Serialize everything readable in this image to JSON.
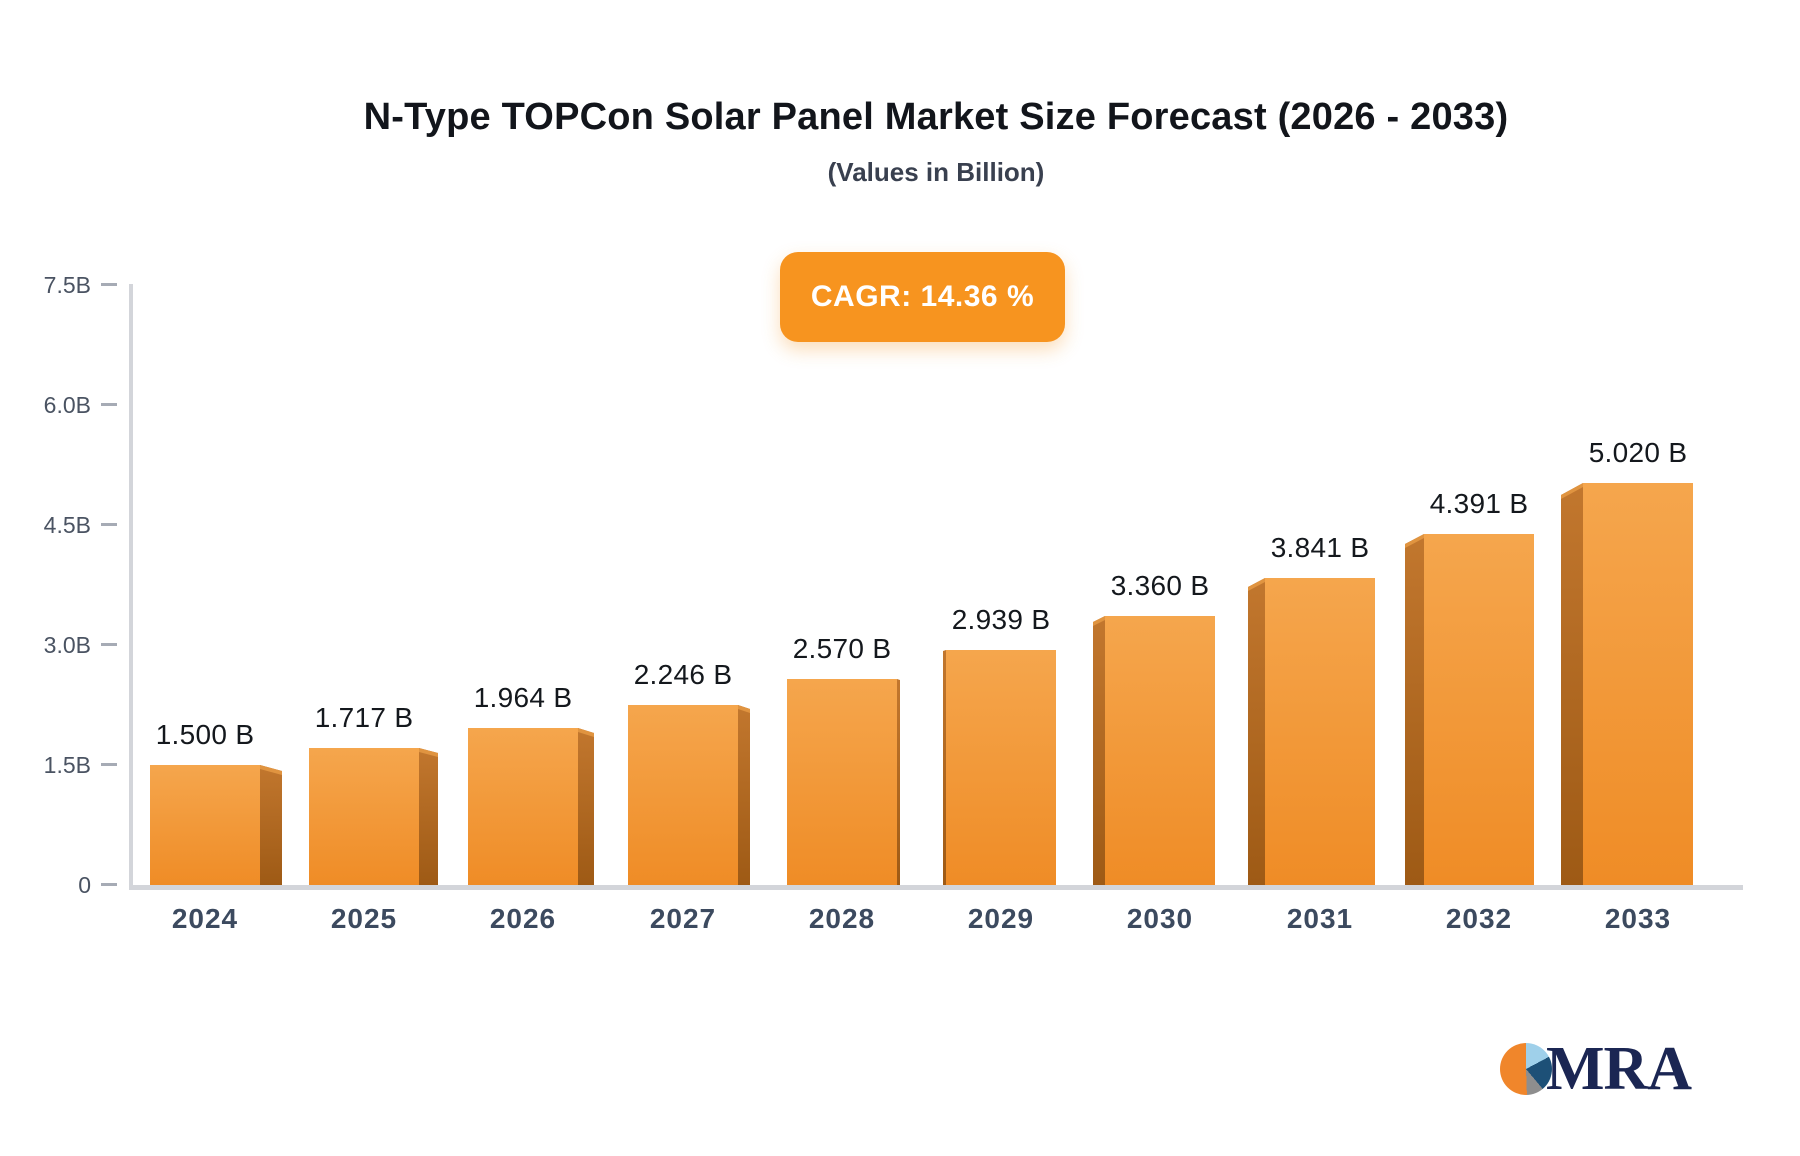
{
  "header": {
    "title": "N-Type TOPCon Solar Panel Market Size Forecast (2026 - 2033)",
    "subtitle": "(Values in Billion)"
  },
  "cagr": {
    "label": "CAGR: 14.36 %",
    "color": "#F7941F"
  },
  "chart_data": {
    "type": "bar",
    "title": "N-Type TOPCon Solar Panel Market Size Forecast (2026 - 2033)",
    "subtitle": "(Values in Billion)",
    "categories": [
      "2024",
      "2025",
      "2026",
      "2027",
      "2028",
      "2029",
      "2030",
      "2031",
      "2032",
      "2033"
    ],
    "values": [
      1.5,
      1.717,
      1.964,
      2.246,
      2.57,
      2.939,
      3.36,
      3.841,
      4.391,
      5.02
    ],
    "value_labels": [
      "1.500 B",
      "1.717 B",
      "1.964 B",
      "2.246 B",
      "2.570 B",
      "2.939 B",
      "3.360 B",
      "3.841 B",
      "4.391 B",
      "5.020 B"
    ],
    "yticks": [
      {
        "label": "7.5B",
        "value": 7.5
      },
      {
        "label": "6.0B",
        "value": 6.0
      },
      {
        "label": "4.5B",
        "value": 4.5
      },
      {
        "label": "3.0B",
        "value": 3.0
      },
      {
        "label": "1.5B",
        "value": 1.5
      },
      {
        "label": "0",
        "value": 0
      }
    ],
    "ylim": [
      0,
      7.5
    ],
    "grid": false,
    "legend": false,
    "bar_style": "3d-perspective",
    "colors": {
      "bar_top": "#F5A64D",
      "bar_bottom": "#EF8C26",
      "side_top": "#C2772E",
      "side_bottom": "#9E5A15",
      "top_face": "#E09440",
      "axis_line": "#D3D5DA"
    }
  },
  "logo": {
    "text": "MRA",
    "text_color": "#1B2653",
    "pie_colors": {
      "light_blue": "#9FD0EA",
      "navy": "#1D5077",
      "gray": "#8E8E8E",
      "orange": "#F0862B"
    }
  }
}
